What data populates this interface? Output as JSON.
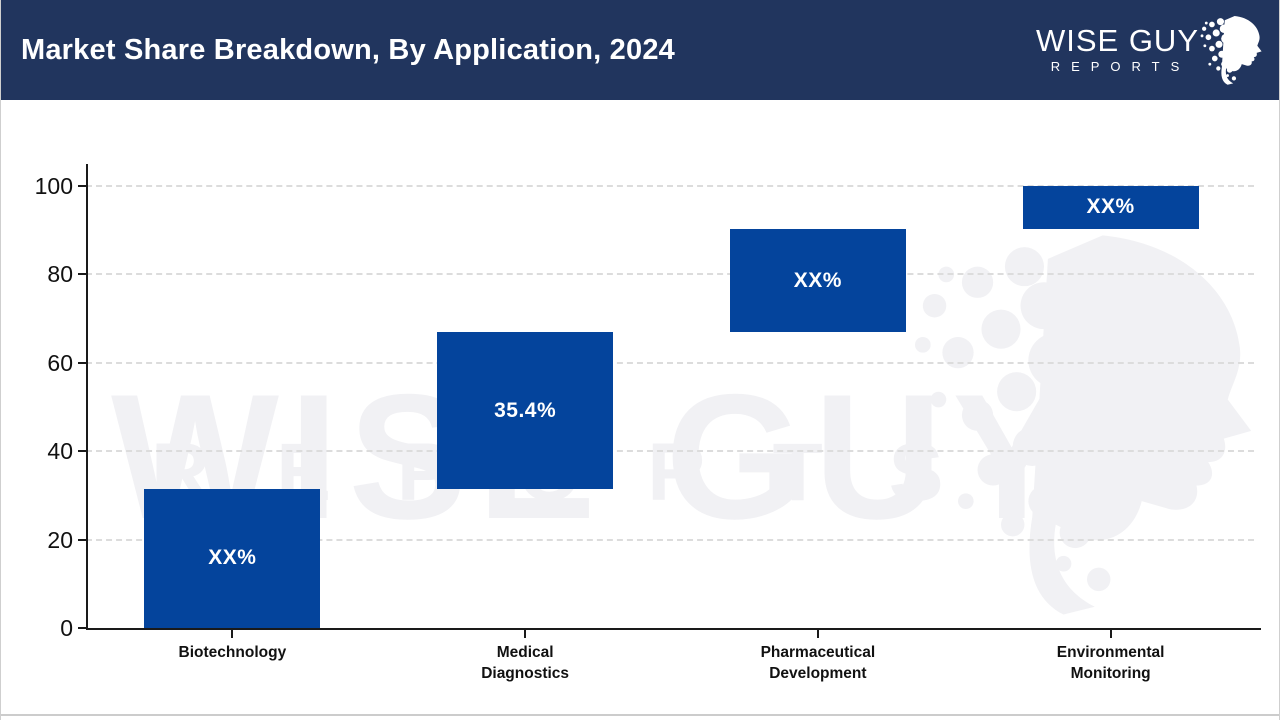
{
  "header": {
    "title": "Market Share Breakdown, By Application, 2024"
  },
  "logo": {
    "line1": "WISE GUY",
    "line2": "REPORTS"
  },
  "watermark": {
    "line1": "WISE GUY",
    "line2": "REPORTS"
  },
  "colors": {
    "header_bg": "#21355e",
    "bar": "#04449c",
    "bar_label": "#ffffff",
    "gridline": "#dcdcdc",
    "axis": "#1a1a1a",
    "watermark": "#f1f1f4"
  },
  "chart_data": {
    "type": "bar",
    "subtype": "waterfall-style floating bars",
    "title": "Market Share Breakdown, By Application, 2024",
    "categories": [
      "Biotechnology",
      "Medical Diagnostics",
      "Pharmaceutical Development",
      "Environmental Monitoring"
    ],
    "x_tick_lines": [
      [
        "Biotechnology"
      ],
      [
        "Medical",
        "Diagnostics"
      ],
      [
        "Pharmaceutical",
        "Development"
      ],
      [
        "Environmental",
        "Monitoring"
      ]
    ],
    "segments": [
      {
        "category": "Biotechnology",
        "start": 0,
        "end": 31.5,
        "label": "XX%"
      },
      {
        "category": "Medical Diagnostics",
        "start": 31.5,
        "end": 66.9,
        "label": "35.4%",
        "value": 35.4
      },
      {
        "category": "Pharmaceutical Development",
        "start": 66.9,
        "end": 90.3,
        "label": "XX%"
      },
      {
        "category": "Environmental Monitoring",
        "start": 90.3,
        "end": 100,
        "label": "XX%"
      }
    ],
    "yticks": [
      0,
      20,
      40,
      60,
      80,
      100
    ],
    "ylim": [
      0,
      100
    ],
    "xlabel": "",
    "ylabel": "",
    "grid": "horizontal dashed gridlines at each y tick except 0",
    "legend": "none"
  }
}
